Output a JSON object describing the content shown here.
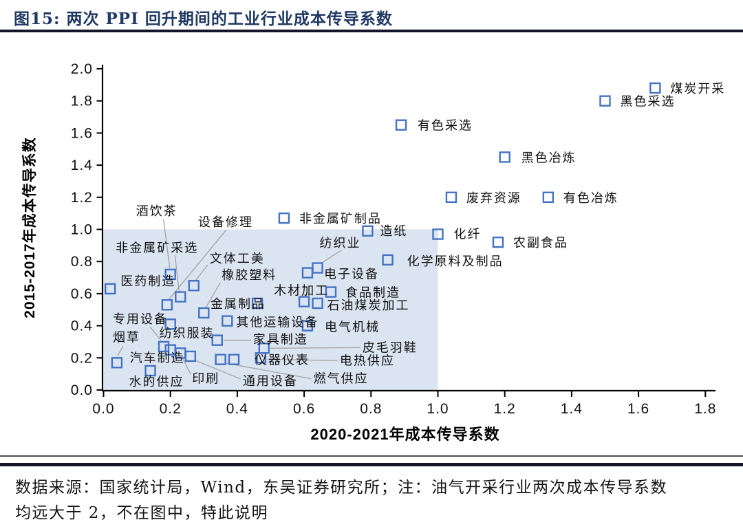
{
  "header": {
    "title": "图15:  两次 PPI 回升期间的工业行业成本传导系数"
  },
  "footer": {
    "line1": "数据来源：国家统计局，Wind，东吴证券研究所；注：油气开采行业两次成本传导系数",
    "line2": "均远大于 2，不在图中，特此说明"
  },
  "colors": {
    "title_navy": "#1f3864",
    "marker_blue": "#4472c4",
    "shade_blue": "#dbe5f1",
    "leader_gray": "#a6a6a6",
    "rule_dark": "#14142a"
  },
  "chart_data": {
    "type": "scatter",
    "title": "两次PPI回升期间的工业行业成本传导系数",
    "xlabel": "2020-2021年成本传导系数",
    "ylabel": "2015-2017年成本传导系数",
    "xlim": [
      0,
      1.8
    ],
    "ylim": [
      0,
      2.0
    ],
    "xticks": [
      0,
      0.2,
      0.4,
      0.6,
      0.8,
      1.0,
      1.2,
      1.4,
      1.6,
      1.8
    ],
    "yticks": [
      0,
      0.2,
      0.4,
      0.6,
      0.8,
      1.0,
      1.2,
      1.4,
      1.6,
      1.8,
      2.0
    ],
    "xtick_labels": [
      "0.0",
      "0.2",
      "0.4",
      "0.6",
      "0.8",
      "1.0",
      "1.2",
      "1.4",
      "1.6",
      "1.8"
    ],
    "ytick_labels": [
      "0.0",
      "0.2",
      "0.4",
      "0.6",
      "0.8",
      "1.0",
      "1.2",
      "1.4",
      "1.6",
      "1.8",
      "2.0"
    ],
    "grid": false,
    "legend": "none",
    "marker": {
      "shape": "hollow-square",
      "size": 14,
      "color": "#4472c4"
    },
    "shaded_region": {
      "x": [
        0,
        1.0
      ],
      "y": [
        0,
        1.0
      ],
      "color": "#dbe5f1"
    },
    "points": [
      {
        "label": "煤炭开采",
        "x": 1.65,
        "y": 1.88
      },
      {
        "label": "黑色采选",
        "x": 1.5,
        "y": 1.8
      },
      {
        "label": "有色采选",
        "x": 0.89,
        "y": 1.65
      },
      {
        "label": "黑色冶炼",
        "x": 1.2,
        "y": 1.45
      },
      {
        "label": "废弃资源",
        "x": 1.04,
        "y": 1.2
      },
      {
        "label": "有色冶炼",
        "x": 1.33,
        "y": 1.2
      },
      {
        "label": "非金属矿制品",
        "x": 0.54,
        "y": 1.07
      },
      {
        "label": "造纸",
        "x": 0.79,
        "y": 0.99
      },
      {
        "label": "化纤",
        "x": 1.0,
        "y": 0.97
      },
      {
        "label": "农副食品",
        "x": 1.18,
        "y": 0.92
      },
      {
        "label": "化学原料及制品",
        "x": 0.85,
        "y": 0.81
      },
      {
        "label": "纺织业",
        "x": 0.64,
        "y": 0.76
      },
      {
        "label": "电子设备",
        "x": 0.61,
        "y": 0.73
      },
      {
        "label": "酒饮茶",
        "x": 0.2,
        "y": 0.72
      },
      {
        "label": "文体工美",
        "x": 0.27,
        "y": 0.65
      },
      {
        "label": "医药制造",
        "x": 0.02,
        "y": 0.63
      },
      {
        "label": "食品制造",
        "x": 0.68,
        "y": 0.61
      },
      {
        "label": "非金属矿采选",
        "x": 0.23,
        "y": 0.58
      },
      {
        "label": "木材加工",
        "x": 0.6,
        "y": 0.55
      },
      {
        "label": "石油煤炭加工",
        "x": 0.64,
        "y": 0.54
      },
      {
        "label": "金属制品",
        "x": 0.46,
        "y": 0.54
      },
      {
        "label": "设备修理",
        "x": 0.19,
        "y": 0.53
      },
      {
        "label": "橡胶塑料",
        "x": 0.3,
        "y": 0.48
      },
      {
        "label": "其他运输设备",
        "x": 0.37,
        "y": 0.43
      },
      {
        "label": "纺织服装",
        "x": 0.2,
        "y": 0.41
      },
      {
        "label": "电气机械",
        "x": 0.61,
        "y": 0.4
      },
      {
        "label": "家具制造",
        "x": 0.34,
        "y": 0.31
      },
      {
        "label": "专用设备",
        "x": 0.18,
        "y": 0.27
      },
      {
        "label": "皮毛羽鞋",
        "x": 0.48,
        "y": 0.26
      },
      {
        "label": "汽车制造",
        "x": 0.2,
        "y": 0.25
      },
      {
        "label": "印刷",
        "x": 0.23,
        "y": 0.23
      },
      {
        "label": "通用设备",
        "x": 0.26,
        "y": 0.21
      },
      {
        "label": "电热供应",
        "x": 0.47,
        "y": 0.2
      },
      {
        "label": "仪器仪表",
        "x": 0.39,
        "y": 0.19
      },
      {
        "label": "燃气供应",
        "x": 0.35,
        "y": 0.19
      },
      {
        "label": "烟草",
        "x": 0.04,
        "y": 0.17
      },
      {
        "label": "水的供应",
        "x": 0.14,
        "y": 0.12
      }
    ]
  }
}
